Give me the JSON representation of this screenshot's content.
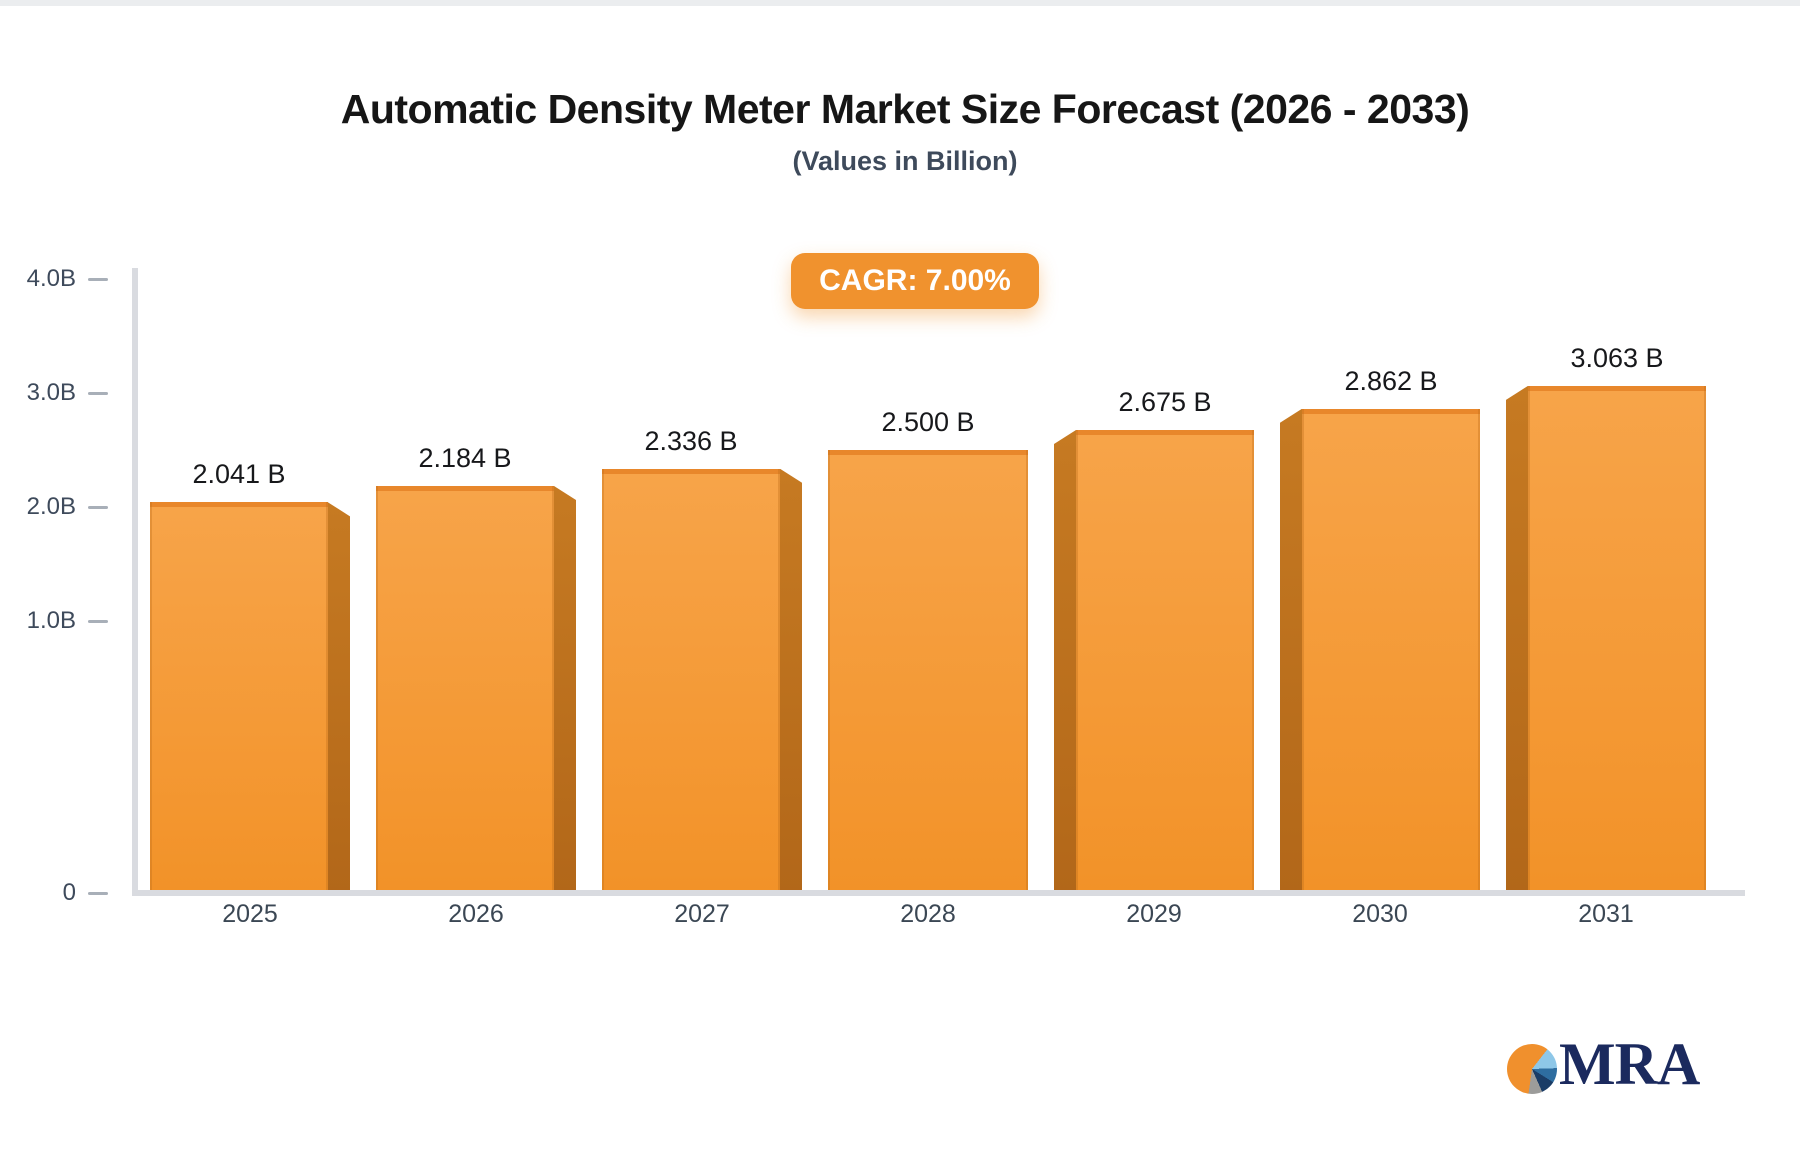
{
  "chart_data": {
    "type": "bar",
    "title": "Automatic Density Meter Market Size Forecast (2026 - 2033)",
    "subtitle": "(Values in Billion)",
    "cagr_label": "CAGR: 7.00%",
    "categories": [
      "2025",
      "2026",
      "2027",
      "2028",
      "2029",
      "2030",
      "2031"
    ],
    "values": [
      2.041,
      2.184,
      2.336,
      2.5,
      2.675,
      2.862,
      3.063
    ],
    "value_labels": [
      "2.041 B",
      "2.184 B",
      "2.336 B",
      "2.500 B",
      "2.675 B",
      "2.862 B",
      "3.063 B"
    ],
    "unit": "B",
    "ylim": [
      0,
      4
    ],
    "yticks": [
      {
        "label": "4.0B",
        "value": 4
      },
      {
        "label": "3.0B",
        "value": 3
      },
      {
        "label": "2.0B",
        "value": 2
      },
      {
        "label": "1.0B",
        "value": 1
      },
      {
        "label": "0",
        "value": 0
      }
    ],
    "grid": false,
    "legend": null,
    "bar_style": "3d-extruded-orange"
  },
  "brand": {
    "name": "MRA"
  },
  "colors": {
    "title_text": "#161616",
    "subtitle_text": "#3E4A5B",
    "badge_bg": "#F0922E",
    "badge_text": "#FFFFFF",
    "bar_top": "#F7A449",
    "bar_bottom": "#F29228",
    "bar_edge": "#E8872B",
    "bar_side": "#B26719",
    "axis_line": "#D9DBE0",
    "tick_text": "#3E4A5B",
    "tick_dash": "#A8AFB8",
    "value_text": "#17181B",
    "year_text": "#3B4754",
    "logo_navy": "#1B2A5E",
    "pie_orange": "#F0902D",
    "pie_lightblue": "#8EC7E8",
    "pie_mediumblue": "#2E6DA0",
    "pie_darkblue": "#1A3C66",
    "pie_gray": "#9C9C9A"
  }
}
